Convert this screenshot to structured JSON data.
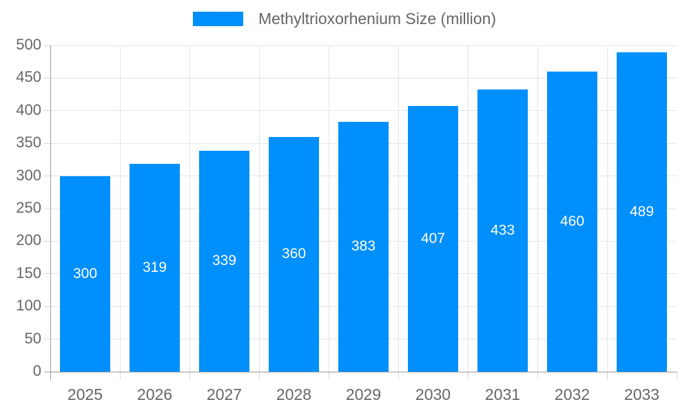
{
  "legend": {
    "label": "Methyltrioxorhenium Size (million)"
  },
  "chart_data": {
    "type": "bar",
    "title": "Methyltrioxorhenium Size (million)",
    "categories": [
      "2025",
      "2026",
      "2027",
      "2028",
      "2029",
      "2030",
      "2031",
      "2032",
      "2033"
    ],
    "values": [
      300,
      319,
      339,
      360,
      383,
      407,
      433,
      460,
      489
    ],
    "xlabel": "",
    "ylabel": "",
    "ylim": [
      0,
      500
    ],
    "yticks": [
      0,
      50,
      100,
      150,
      200,
      250,
      300,
      350,
      400,
      450,
      500
    ],
    "grid": true,
    "legend_position": "top",
    "bar_label_position": "center",
    "colors": {
      "bar": "#008FFB",
      "bar_label": "#ffffff",
      "grid": "#e6e6e6",
      "axis": "#999999",
      "tick": "#d4d4d4",
      "axis_text": "#666666",
      "legend_text": "#666666"
    }
  }
}
